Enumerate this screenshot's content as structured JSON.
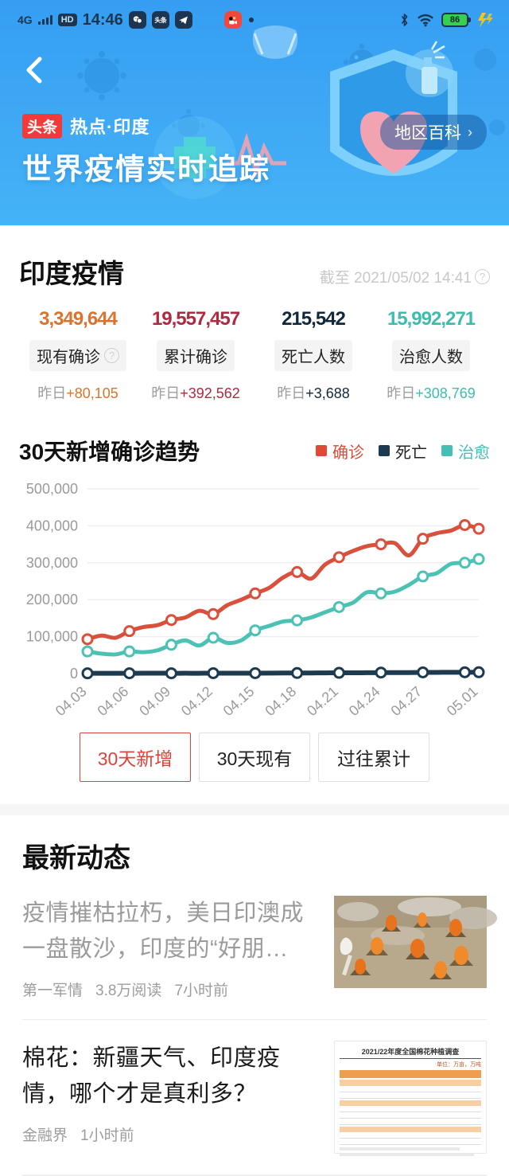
{
  "status_bar": {
    "network": "4G",
    "hd": "HD",
    "time": "14:46",
    "toutiao_badge": "头条",
    "battery_percent": "86"
  },
  "banner": {
    "brand": "头条",
    "topic": "热点·印度",
    "region_button": "地区百科",
    "region_chevron": "›",
    "title": "世界疫情实时追踪"
  },
  "stats": {
    "title": "印度疫情",
    "as_of": "截至 2021/05/02 14:41",
    "help_glyph": "?",
    "cards": [
      {
        "value": "3,349,644",
        "label": "现有确诊",
        "delta_prefix": "昨日",
        "delta": "+80,105",
        "color": "#d9742f"
      },
      {
        "value": "19,557,457",
        "label": "累计确诊",
        "delta_prefix": "昨日",
        "delta": "+392,562",
        "color": "#af2a41"
      },
      {
        "value": "215,542",
        "label": "死亡人数",
        "delta_prefix": "昨日",
        "delta": "+3,688",
        "color": "#12293b"
      },
      {
        "value": "15,992,271",
        "label": "治愈人数",
        "delta_prefix": "昨日",
        "delta": "+308,769",
        "color": "#3fbcae"
      }
    ]
  },
  "chart": {
    "title": "30天新增确诊趋势",
    "legend": [
      {
        "label": "确诊",
        "color": "#de4a35"
      },
      {
        "label": "死亡",
        "color": "#1c3a50"
      },
      {
        "label": "治愈",
        "color": "#45bfb4"
      }
    ]
  },
  "chart_data": {
    "type": "line",
    "title": "30天新增确诊趋势",
    "x": [
      "04.03",
      "04.04",
      "04.05",
      "04.06",
      "04.07",
      "04.08",
      "04.09",
      "04.10",
      "04.11",
      "04.12",
      "04.13",
      "04.14",
      "04.15",
      "04.16",
      "04.17",
      "04.18",
      "04.19",
      "04.20",
      "04.21",
      "04.22",
      "04.23",
      "04.24",
      "04.25",
      "04.26",
      "04.27",
      "04.28",
      "04.29",
      "04.30",
      "05.01"
    ],
    "series": [
      {
        "name": "确诊",
        "color": "#d9503c",
        "values": [
          93000,
          103000,
          97000,
          115000,
          126000,
          131000,
          145000,
          152000,
          170000,
          161000,
          185000,
          200000,
          217000,
          232000,
          260000,
          275000,
          257000,
          295000,
          315000,
          332000,
          345000,
          350000,
          353000,
          320000,
          365000,
          380000,
          387000,
          402000,
          392000
        ]
      },
      {
        "name": "死亡",
        "color": "#1c3a50",
        "values": [
          700,
          750,
          800,
          900,
          1000,
          1050,
          900,
          950,
          900,
          1200,
          1100,
          1050,
          1200,
          1350,
          1500,
          1600,
          1750,
          2000,
          2050,
          2250,
          2300,
          2750,
          2800,
          2750,
          3300,
          3300,
          3500,
          3500,
          3700
        ]
      },
      {
        "name": "治愈",
        "color": "#4cc2b5",
        "values": [
          60000,
          54000,
          52000,
          60000,
          58000,
          63000,
          78000,
          90000,
          76000,
          97000,
          83000,
          90000,
          117000,
          129000,
          141000,
          144000,
          152000,
          166000,
          180000,
          192000,
          220000,
          217000,
          222000,
          240000,
          263000,
          272000,
          297000,
          300000,
          310000
        ]
      }
    ],
    "ylim": [
      0,
      500000
    ],
    "yticks": [
      0,
      100000,
      200000,
      300000,
      400000,
      500000
    ],
    "ytick_labels": [
      "0",
      "100,000",
      "200,000",
      "300,000",
      "400,000",
      "500,000"
    ],
    "marker_indices": [
      0,
      3,
      6,
      9,
      12,
      15,
      18,
      21,
      24,
      27,
      28
    ],
    "label_indices": [
      0,
      3,
      6,
      9,
      12,
      15,
      18,
      21,
      24,
      28
    ],
    "grid": true,
    "legend_position": "top-right"
  },
  "tabs": [
    {
      "label": "30天新增",
      "active": true
    },
    {
      "label": "30天现有",
      "active": false
    },
    {
      "label": "过往累计",
      "active": false
    }
  ],
  "news": {
    "heading": "最新动态",
    "items": [
      {
        "title": "疫情摧枯拉朽，美日印澳成一盘散沙，印度的“好朋…",
        "source": "第一军情",
        "reads": "3.8万阅读",
        "time": "7小时前"
      },
      {
        "title": "棉花：新疆天气、印度疫情，哪个才是真利多？",
        "source": "金融界",
        "time": "1小时前",
        "thumb_table_title": "2021/22年度全国棉花种植调查",
        "thumb_table_unit": "单位：万亩，万吨"
      }
    ]
  }
}
